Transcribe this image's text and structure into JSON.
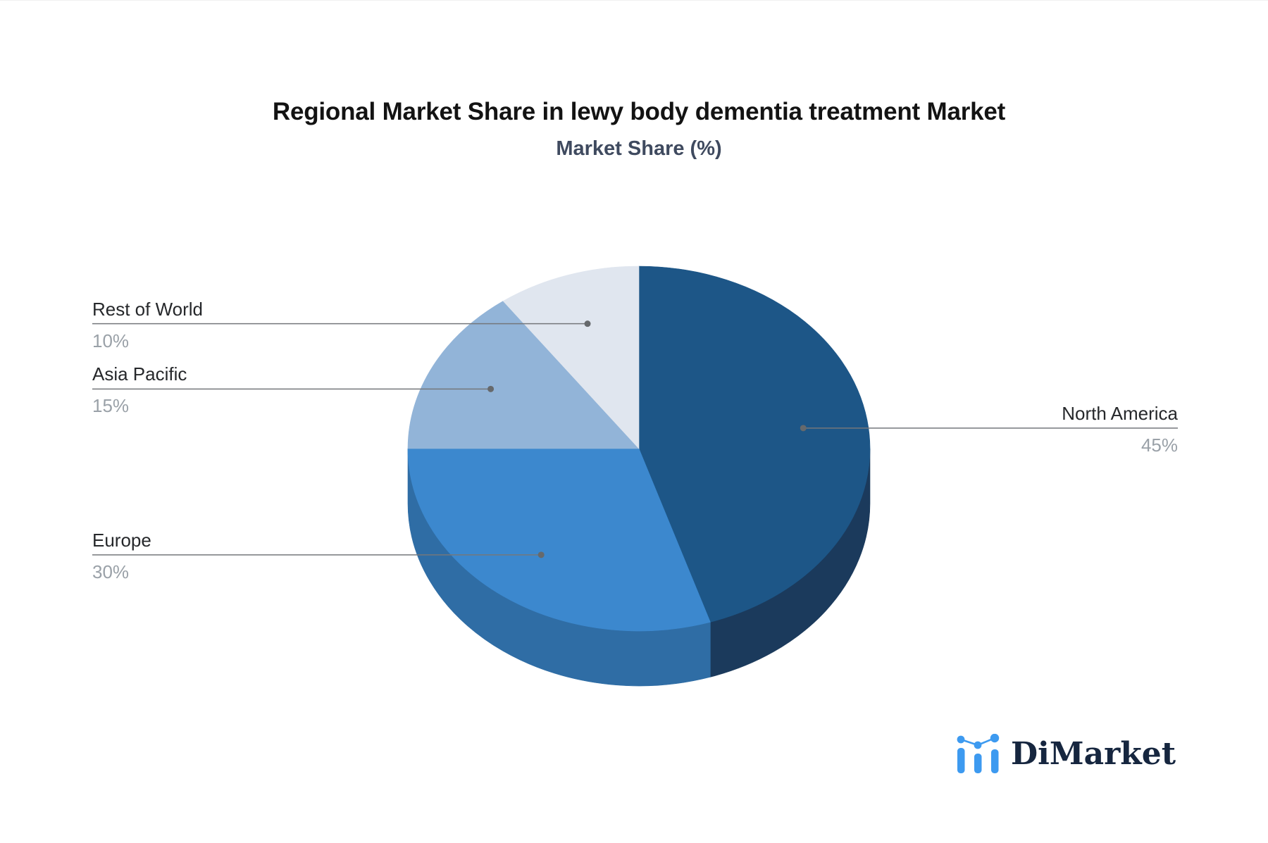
{
  "header": {
    "title": "Regional Market Share in lewy body dementia treatment Market",
    "subtitle": "Market Share (%)"
  },
  "chart_data": {
    "type": "pie",
    "title": "Regional Market Share in lewy body dementia treatment Market",
    "subtitle": "Market Share (%)",
    "unit": "%",
    "style": "3d-pie",
    "start_angle_deg": 0,
    "direction": "clockwise",
    "legend_position": "callout-labels",
    "slices": [
      {
        "label": "North America",
        "value": 45,
        "pct_label": "45%",
        "color": "#1d5687",
        "side_color": "#1b3a5c",
        "callout_side": "right"
      },
      {
        "label": "Europe",
        "value": 30,
        "pct_label": "30%",
        "color": "#3c88ce",
        "side_color": "#2f6da5",
        "callout_side": "left"
      },
      {
        "label": "Asia Pacific",
        "value": 15,
        "pct_label": "15%",
        "color": "#92b4d8",
        "side_color": "#7ea2c8",
        "callout_side": "left"
      },
      {
        "label": "Rest of World",
        "value": 10,
        "pct_label": "10%",
        "color": "#e0e6ef",
        "side_color": "#c4cfde",
        "callout_side": "left"
      }
    ],
    "label_text_color": "#26282b",
    "pct_text_color": "#9aa1a8",
    "connector_color": "#74777b"
  },
  "branding": {
    "name": "DiMarket",
    "icon": "bar-chart-icon",
    "text_color": "#16263f",
    "icon_color": "#3d9af0"
  }
}
